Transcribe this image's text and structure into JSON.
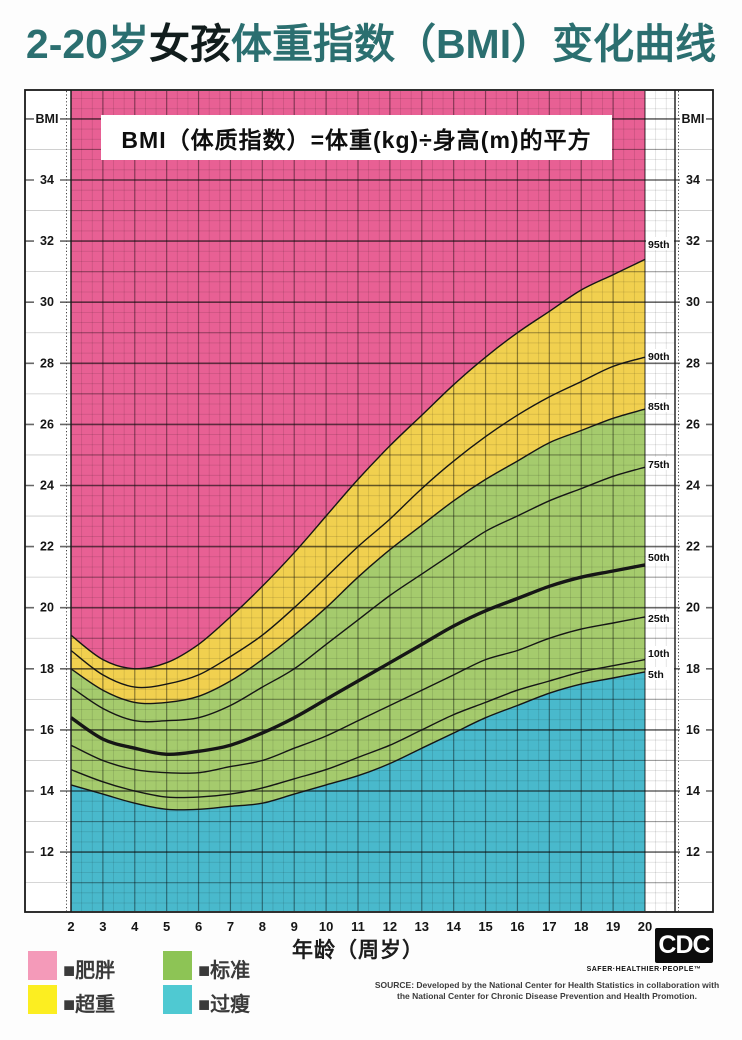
{
  "title": {
    "part1": "2-20岁",
    "part2": "女孩",
    "part3": "体重指数（BMI）变化曲线"
  },
  "formula": "BMI（体质指数）=体重(kg)÷身高(m)的平方",
  "chart_data": {
    "type": "line",
    "title": "2-20岁女孩体重指数（BMI）变化曲线",
    "xlabel": "年龄（周岁）",
    "ylabel": "BMI",
    "xlim": [
      2,
      20
    ],
    "ylim": [
      10,
      36.9
    ],
    "grid": "on",
    "x_ticks": [
      2,
      3,
      4,
      5,
      6,
      7,
      8,
      9,
      10,
      11,
      12,
      13,
      14,
      15,
      16,
      17,
      18,
      19,
      20
    ],
    "y_ticks": [
      34,
      32,
      30,
      28,
      26,
      24,
      22,
      20,
      18,
      16,
      14,
      12
    ],
    "y_axis_top_label": "BMI",
    "ages": [
      2,
      3,
      4,
      5,
      6,
      7,
      8,
      9,
      10,
      11,
      12,
      13,
      14,
      15,
      16,
      17,
      18,
      19,
      20
    ],
    "series": [
      {
        "name": "95th",
        "values": [
          19.1,
          18.3,
          18.0,
          18.2,
          18.8,
          19.7,
          20.7,
          21.8,
          23.0,
          24.2,
          25.3,
          26.3,
          27.3,
          28.2,
          29.0,
          29.7,
          30.4,
          30.9,
          31.4
        ]
      },
      {
        "name": "90th",
        "values": [
          18.6,
          17.8,
          17.4,
          17.5,
          17.8,
          18.4,
          19.1,
          20.0,
          21.0,
          22.0,
          22.9,
          23.9,
          24.8,
          25.6,
          26.3,
          26.9,
          27.4,
          27.9,
          28.2
        ]
      },
      {
        "name": "85th",
        "values": [
          18.0,
          17.3,
          16.9,
          16.9,
          17.1,
          17.6,
          18.3,
          19.1,
          20.0,
          21.0,
          21.9,
          22.7,
          23.5,
          24.2,
          24.8,
          25.4,
          25.8,
          26.2,
          26.5
        ]
      },
      {
        "name": "75th",
        "values": [
          17.4,
          16.7,
          16.3,
          16.3,
          16.4,
          16.8,
          17.4,
          18.0,
          18.8,
          19.6,
          20.4,
          21.1,
          21.8,
          22.5,
          23.0,
          23.5,
          23.9,
          24.3,
          24.6
        ]
      },
      {
        "name": "50th",
        "values": [
          16.4,
          15.7,
          15.4,
          15.2,
          15.3,
          15.5,
          15.9,
          16.4,
          17.0,
          17.6,
          18.2,
          18.8,
          19.4,
          19.9,
          20.3,
          20.7,
          21.0,
          21.2,
          21.4
        ]
      },
      {
        "name": "25th",
        "values": [
          15.5,
          15.0,
          14.7,
          14.6,
          14.6,
          14.8,
          15.0,
          15.4,
          15.8,
          16.3,
          16.8,
          17.3,
          17.8,
          18.3,
          18.6,
          19.0,
          19.3,
          19.5,
          19.7
        ]
      },
      {
        "name": "10th",
        "values": [
          14.7,
          14.3,
          14.0,
          13.8,
          13.8,
          13.9,
          14.1,
          14.4,
          14.7,
          15.1,
          15.5,
          16.0,
          16.5,
          16.9,
          17.3,
          17.6,
          17.9,
          18.1,
          18.3
        ]
      },
      {
        "name": "5th",
        "values": [
          14.2,
          13.9,
          13.6,
          13.4,
          13.4,
          13.5,
          13.6,
          13.9,
          14.2,
          14.5,
          14.9,
          15.4,
          15.9,
          16.4,
          16.8,
          17.2,
          17.5,
          17.7,
          17.9
        ]
      }
    ],
    "median_series": "50th",
    "zones": [
      {
        "label": "肥胖",
        "range": "above 95th",
        "color": "#e86094"
      },
      {
        "label": "超重",
        "range": "85th–95th",
        "color": "#f1d04f"
      },
      {
        "label": "标准",
        "range": "5th–85th",
        "color": "#a5cb6d"
      },
      {
        "label": "过瘦",
        "range": "below 5th",
        "color": "#49b9cc"
      }
    ],
    "percentile_labels": [
      "95th",
      "90th",
      "85th",
      "75th",
      "50th",
      "25th",
      "10th",
      "5th"
    ]
  },
  "legend": {
    "items": [
      {
        "label": "■肥胖",
        "color": "#f49ab9"
      },
      {
        "label": "■超重",
        "color": "#fcee21"
      },
      {
        "label": "■标准",
        "color": "#8dc455"
      },
      {
        "label": "■过瘦",
        "color": "#4fc9d2"
      }
    ]
  },
  "footer": {
    "cdc": "CDC",
    "tagline": "SAFER·HEALTHIER·PEOPLE™",
    "source_line1": "SOURCE: Developed by the National Center for Health Statistics in collaboration with",
    "source_line2": "the National Center for Chronic Disease Prevention and Health Promotion."
  }
}
